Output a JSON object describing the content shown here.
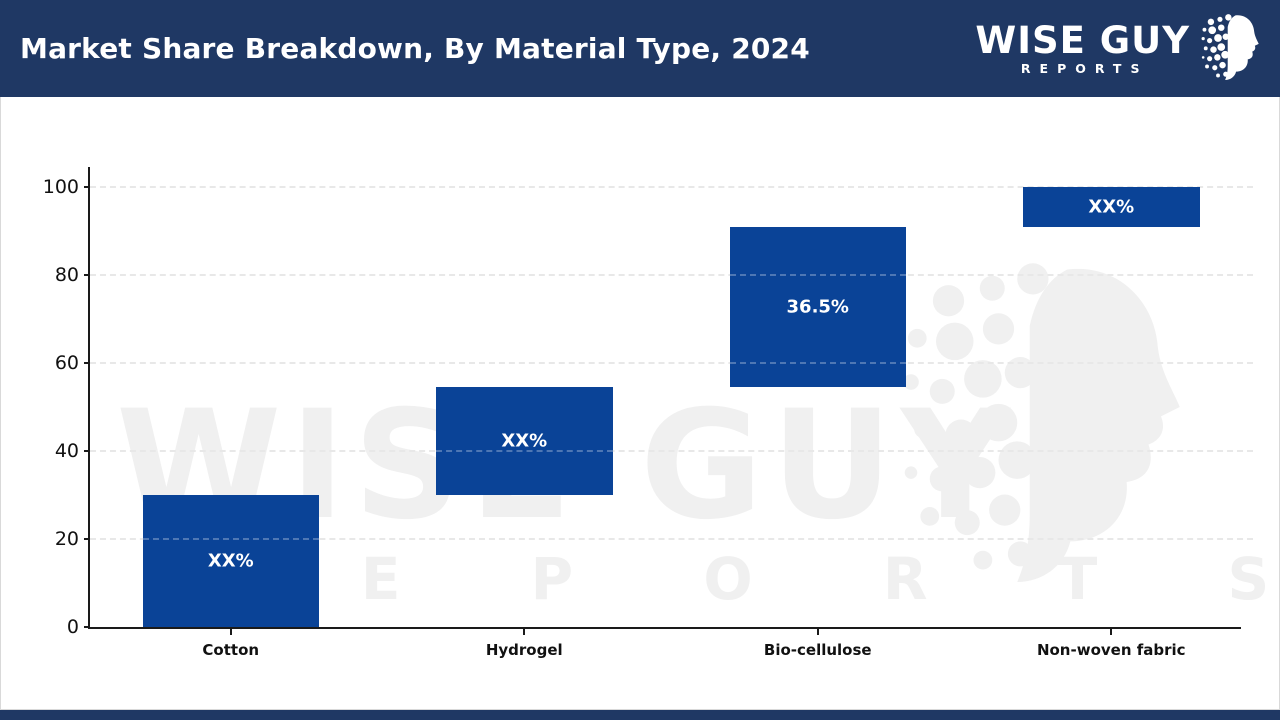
{
  "header": {
    "title": "Market Share Breakdown, By Material Type, 2024",
    "logo": {
      "wordmark": "WISE GUY",
      "subtext": "REPORTS"
    }
  },
  "watermark": {
    "line1": "WISE GUY",
    "line2": "R E P O R T S"
  },
  "chart_data": {
    "type": "bar",
    "subtype": "waterfall",
    "title": "Market Share Breakdown, By Material Type, 2024",
    "categories": [
      "Cotton",
      "Hydrogel",
      "Bio-cellulose",
      "Non-woven fabric"
    ],
    "bars": [
      {
        "category": "Cotton",
        "start": 0,
        "end": 30,
        "label": "XX%"
      },
      {
        "category": "Hydrogel",
        "start": 30,
        "end": 54.5,
        "label": "XX%"
      },
      {
        "category": "Bio-cellulose",
        "start": 54.5,
        "end": 91,
        "label": "36.5%",
        "value": 36.5
      },
      {
        "category": "Non-woven fabric",
        "start": 91,
        "end": 100,
        "label": "XX%"
      }
    ],
    "yticks": [
      0,
      20,
      40,
      60,
      80,
      100
    ],
    "ylim": [
      0,
      105
    ],
    "xlabel": "",
    "ylabel": "",
    "grid": "dashed-horizontal",
    "legend": "none"
  },
  "colors": {
    "header_bg": "#1f3864",
    "footer_bg": "#1f3864",
    "bar": "#0a4397",
    "bar_label": "#ffffff",
    "grid": "#e8e8e8",
    "axis": "#1a1a1a",
    "panel_border": "#d9d9d9",
    "watermark": "#f0f0f0"
  }
}
